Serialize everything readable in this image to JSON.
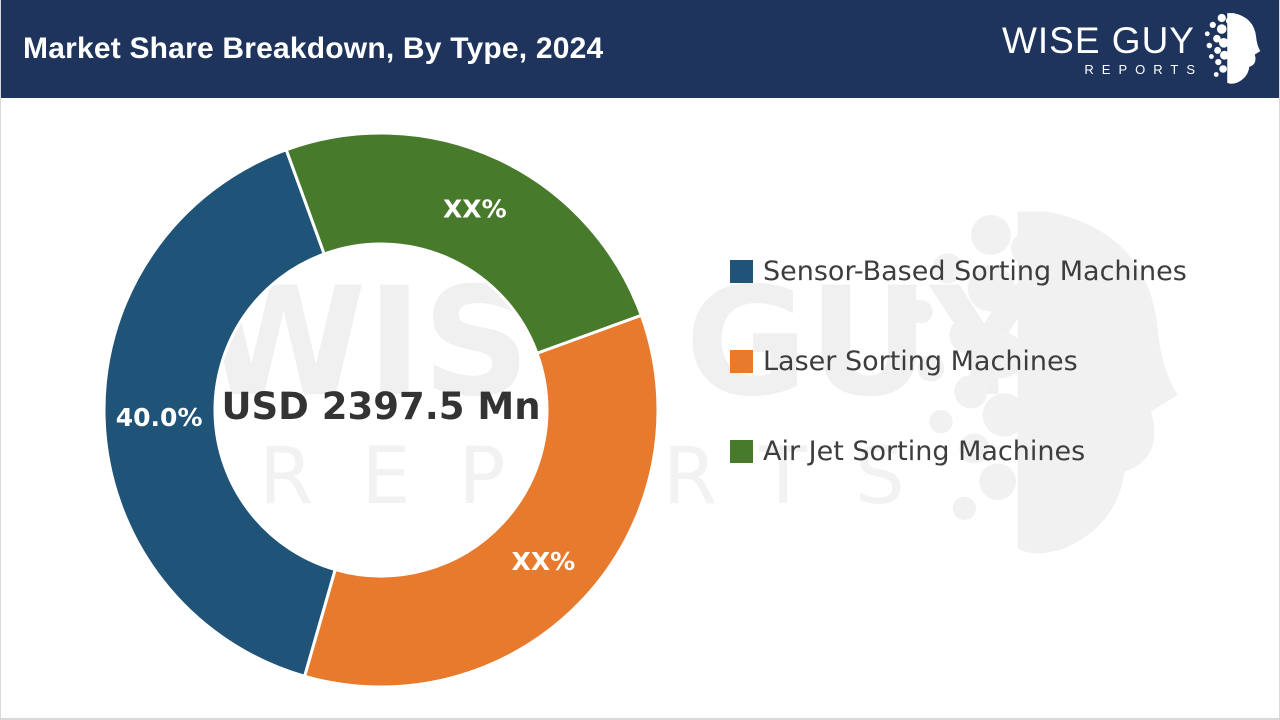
{
  "header": {
    "title": "Market Share Breakdown, By Type, 2024",
    "bg_color": "#1e345c",
    "logo": {
      "line1": "WISE GUY",
      "line2": "REPORTS",
      "icon": "wiseguy-face-icon"
    }
  },
  "chart_data": {
    "type": "pie",
    "subtype": "donut",
    "center_label": "USD 2397.5 Mn",
    "start_angle": 110,
    "direction": "counterclockwise",
    "legend_position": "right",
    "series": [
      {
        "name": "Sensor-Based Sorting Machines",
        "value": 40.0,
        "display_label": "40.0%",
        "color": "#1f5378"
      },
      {
        "name": "Laser Sorting Machines",
        "value": 35.0,
        "display_label": "XX%",
        "color": "#e87a2e"
      },
      {
        "name": "Air Jet Sorting Machines",
        "value": 25.0,
        "display_label": "XX%",
        "color": "#487a2b"
      }
    ]
  },
  "watermark": {
    "line1": "WISE GUY",
    "line2": "REPORTS",
    "icon": "wiseguy-face-icon"
  }
}
